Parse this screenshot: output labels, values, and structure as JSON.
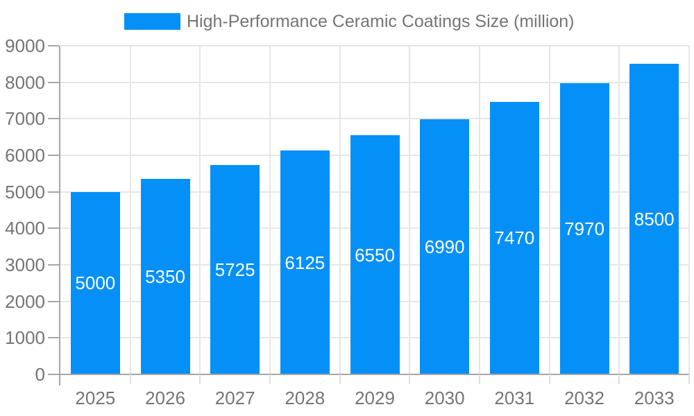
{
  "legend": {
    "label": "High-Performance Ceramic Coatings Size (million)"
  },
  "chart_data": {
    "type": "bar",
    "categories": [
      "2025",
      "2026",
      "2027",
      "2028",
      "2029",
      "2030",
      "2031",
      "2032",
      "2033"
    ],
    "values": [
      5000,
      5350,
      5725,
      6125,
      6550,
      6990,
      7470,
      7970,
      8500
    ],
    "value_labels": [
      "5000",
      "5350",
      "5725",
      "6125",
      "6550",
      "6990",
      "7470",
      "7970",
      "8500"
    ],
    "title": "High-Performance Ceramic Coatings Size (million)",
    "xlabel": "",
    "ylabel": "",
    "ylim": [
      0,
      9000
    ],
    "ytick_step": 1000,
    "yticks": [
      "0",
      "1000",
      "2000",
      "3000",
      "4000",
      "5000",
      "6000",
      "7000",
      "8000",
      "9000"
    ],
    "legend_position": "top",
    "grid": true,
    "colors": {
      "bar": "#0590F8",
      "value_label_text": "#ffffff",
      "axis_line": "#a6a6a6",
      "gridline": "#e6e6e6",
      "axis_text": "#757575",
      "legend_text": "#757575",
      "background": "#ffffff"
    }
  }
}
